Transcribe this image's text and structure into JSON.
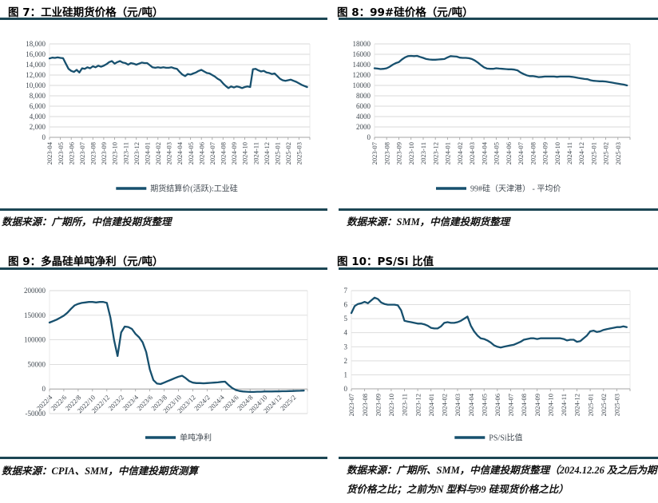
{
  "colors": {
    "accent_rule": "#1c4654",
    "series_line": "#17506e",
    "gridline": "#d9d9d9",
    "axis_line": "#a6a6a6",
    "tick_text": "#404850",
    "legend_text": "#404850"
  },
  "figures": [
    {
      "label": "图 7：工业硅期货价格（元/吨）",
      "source": "数据来源：广期所，中信建投期货整理"
    },
    {
      "label": "图 8：99#硅价格（元/吨）",
      "source": "数据来源：SMM，中信建投期货整理"
    },
    {
      "label": "图 9：多晶硅单吨净利（元/吨）",
      "source": "数据来源：CPIA、SMM，中信建投期货测算"
    },
    {
      "label": "图 10：PS/Si 比值",
      "source": "数据来源：广期所、SMM，中信建投期货整理（2024.12.26 及之后为期货价格之比；之前为N 型料与99 硅现货价格之比）"
    }
  ],
  "chart_data": [
    {
      "type": "line",
      "title": "工业硅期货价格（元/吨）",
      "legend": [
        "期货结算价(活跃):工业硅"
      ],
      "xlabel": "",
      "ylabel": "",
      "grid": true,
      "legend_position": "bottom",
      "ylim": [
        0,
        18000
      ],
      "y_ticks": [
        0,
        2000,
        4000,
        6000,
        8000,
        10000,
        12000,
        14000,
        16000,
        18000
      ],
      "y_tick_labels": [
        "0",
        "2,000",
        "4,000",
        "6,000",
        "8,000",
        "10,000",
        "12,000",
        "14,000",
        "16,000",
        "18,000"
      ],
      "x_tick_labels": [
        "2023-04",
        "2023-05",
        "2023-06",
        "2023-07",
        "2023-08",
        "2023-09",
        "2023-10",
        "2023-11",
        "2023-12",
        "2024-01",
        "2024-02",
        "2024-03",
        "2024-04",
        "2024-05",
        "2024-06",
        "2024-07",
        "2024-08",
        "2024-09",
        "2024-10",
        "2024-11",
        "2024-12",
        "2025-01",
        "2025-02",
        "2025-03"
      ],
      "points_per_tick": 4,
      "values": [
        15200,
        15350,
        15300,
        15400,
        15300,
        15250,
        14200,
        13200,
        12800,
        12600,
        13000,
        12500,
        13300,
        13200,
        13500,
        13300,
        13700,
        13500,
        13800,
        13600,
        13800,
        14100,
        14500,
        14700,
        14200,
        14500,
        14700,
        14400,
        14300,
        14000,
        14300,
        14200,
        14000,
        14200,
        14400,
        14300,
        14300,
        13900,
        13500,
        13400,
        13500,
        13400,
        13500,
        13400,
        13400,
        13500,
        13300,
        13200,
        12600,
        12100,
        11800,
        12200,
        12100,
        12300,
        12500,
        12800,
        13000,
        12700,
        12400,
        12300,
        12000,
        11700,
        11300,
        11000,
        10400,
        9900,
        9500,
        9800,
        9600,
        9800,
        9700,
        9500,
        9700,
        9800,
        9700,
        13100,
        13200,
        12900,
        12700,
        12800,
        12500,
        12400,
        12200,
        12300,
        11800,
        11300,
        11000,
        10900,
        11000,
        11100,
        10900,
        10700,
        10400,
        10100,
        9900,
        9700
      ]
    },
    {
      "type": "line",
      "title": "99#硅价格（元/吨）",
      "legend": [
        "99#硅（天津港） - 平均价"
      ],
      "xlabel": "",
      "ylabel": "",
      "grid": true,
      "legend_position": "bottom",
      "ylim": [
        0,
        18000
      ],
      "y_ticks": [
        0,
        2000,
        4000,
        6000,
        8000,
        10000,
        12000,
        14000,
        16000,
        18000
      ],
      "y_tick_labels": [
        "0",
        "2000",
        "4000",
        "6000",
        "8000",
        "10000",
        "12000",
        "14000",
        "16000",
        "18000"
      ],
      "x_tick_labels": [
        "2023-07",
        "2023-08",
        "2023-09",
        "2023-10",
        "2023-11",
        "2023-12",
        "2024-01",
        "2024-02",
        "2024-03",
        "2024-04",
        "2024-05",
        "2024-06",
        "2024-07",
        "2024-08",
        "2024-09",
        "2024-10",
        "2024-11",
        "2024-12",
        "2025-01",
        "2025-02",
        "2025-03"
      ],
      "points_per_tick": 4,
      "values": [
        13300,
        13250,
        13150,
        13200,
        13300,
        13600,
        14000,
        14300,
        14500,
        15000,
        15400,
        15650,
        15700,
        15650,
        15700,
        15500,
        15300,
        15100,
        15000,
        14950,
        14950,
        15000,
        15050,
        15100,
        15400,
        15650,
        15600,
        15550,
        15350,
        15300,
        15300,
        15250,
        15100,
        14800,
        14400,
        13900,
        13500,
        13250,
        13200,
        13200,
        13300,
        13250,
        13200,
        13150,
        13100,
        13100,
        13050,
        12900,
        12500,
        12200,
        11950,
        11800,
        11800,
        11700,
        11600,
        11650,
        11700,
        11700,
        11700,
        11700,
        11650,
        11700,
        11700,
        11700,
        11700,
        11650,
        11550,
        11450,
        11350,
        11250,
        11200,
        11000,
        10900,
        10850,
        10800,
        10800,
        10750,
        10650,
        10550,
        10450,
        10350,
        10250,
        10150,
        10000
      ]
    },
    {
      "type": "line",
      "title": "多晶硅单吨净利（元/吨）",
      "legend": [
        "单吨净利"
      ],
      "xlabel": "",
      "ylabel": "",
      "grid": true,
      "legend_position": "bottom",
      "ylim": [
        -50000,
        200000
      ],
      "y_ticks": [
        -50000,
        0,
        50000,
        100000,
        150000,
        200000
      ],
      "y_tick_labels": [
        "-50000",
        "0",
        "50000",
        "100000",
        "150000",
        "200000"
      ],
      "x_tick_labels": [
        "2022/4",
        "2022/6",
        "2022/8",
        "2022/10",
        "2022/12",
        "2023/2",
        "2023/4",
        "2023/6",
        "2023/8",
        "2023/10",
        "2023/12",
        "2024/2",
        "2024/4",
        "2024/6",
        "2024/8",
        "2024/10",
        "2024/12",
        "2025/2"
      ],
      "points_per_tick": 4,
      "values": [
        135000,
        138000,
        141000,
        145000,
        149000,
        155000,
        163000,
        170000,
        173000,
        175000,
        176000,
        177000,
        177000,
        176000,
        177000,
        177000,
        175000,
        145000,
        100000,
        67000,
        115000,
        127000,
        126000,
        122000,
        112000,
        105000,
        95000,
        75000,
        40000,
        18000,
        11000,
        10000,
        13000,
        16000,
        19000,
        22000,
        25000,
        27000,
        22000,
        16000,
        13000,
        12000,
        12000,
        11500,
        12000,
        12500,
        13000,
        13500,
        14500,
        15000,
        8000,
        2000,
        -2000,
        -4000,
        -5000,
        -5500,
        -6000,
        -6000,
        -5500,
        -5500,
        -5000,
        -5000,
        -5000,
        -4800,
        -4800,
        -4500,
        -4500,
        -4200,
        -4000,
        -3800,
        -3500,
        -3200
      ]
    },
    {
      "type": "line",
      "title": "PS/Si 比值",
      "legend": [
        "PS/Si比值"
      ],
      "xlabel": "",
      "ylabel": "",
      "grid": true,
      "legend_position": "bottom",
      "ylim": [
        0,
        7
      ],
      "y_ticks": [
        0,
        1,
        2,
        3,
        4,
        5,
        6,
        7
      ],
      "y_tick_labels": [
        "0",
        "1",
        "2",
        "3",
        "4",
        "5",
        "6",
        "7"
      ],
      "x_tick_labels": [
        "2023-07",
        "2023-08",
        "2023-09",
        "2023-10",
        "2023-11",
        "2023-12",
        "2024-01",
        "2024-02",
        "2024-03",
        "2024-04",
        "2024-05",
        "2024-06",
        "2024-07",
        "2024-08",
        "2024-09",
        "2024-10",
        "2024-11",
        "2024-12",
        "2025-01",
        "2025-02",
        "2025-03"
      ],
      "points_per_tick": 4,
      "values": [
        5.4,
        5.9,
        6.05,
        6.1,
        6.2,
        6.1,
        6.3,
        6.5,
        6.4,
        6.15,
        6.05,
        6.0,
        6.0,
        6.0,
        5.95,
        5.6,
        4.85,
        4.8,
        4.75,
        4.7,
        4.65,
        4.65,
        4.6,
        4.5,
        4.35,
        4.3,
        4.3,
        4.45,
        4.7,
        4.75,
        4.7,
        4.7,
        4.75,
        4.85,
        5.0,
        5.15,
        4.5,
        4.1,
        3.8,
        3.6,
        3.55,
        3.45,
        3.3,
        3.1,
        3.0,
        2.95,
        3.0,
        3.05,
        3.1,
        3.15,
        3.25,
        3.35,
        3.5,
        3.55,
        3.6,
        3.6,
        3.55,
        3.6,
        3.6,
        3.6,
        3.6,
        3.6,
        3.6,
        3.6,
        3.55,
        3.45,
        3.5,
        3.5,
        3.35,
        3.4,
        3.6,
        3.8,
        4.1,
        4.15,
        4.05,
        4.1,
        4.2,
        4.25,
        4.3,
        4.35,
        4.4,
        4.4,
        4.45,
        4.4
      ]
    }
  ]
}
